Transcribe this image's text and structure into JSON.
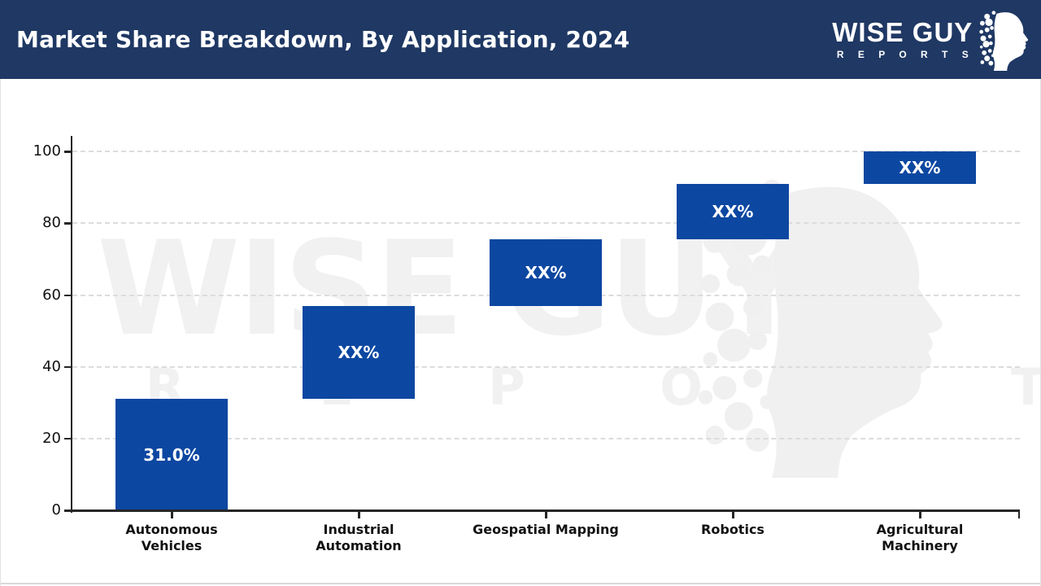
{
  "header": {
    "title": "Market Share Breakdown, By Application, 2024",
    "logo": {
      "brand": "WISE GUY",
      "sub": "REPORTS",
      "sub_display": "R E P O R T S"
    }
  },
  "watermark": {
    "brand": "WISE GUY",
    "sub_display": "R E P O R T S"
  },
  "colors": {
    "header_bg": "#1f3864",
    "bar": "#0c47a1",
    "grid": "#dcdcdc",
    "axis": "#262626",
    "bar_label_text": "#ffffff",
    "watermark": "#f1f1f2"
  },
  "chart_data": {
    "type": "bar",
    "subtype": "waterfall",
    "title": "Market Share Breakdown, By Application, 2024",
    "categories": [
      "Autonomous Vehicles",
      "Industrial Automation",
      "Geospatial Mapping",
      "Robotics",
      "Agricultural Machinery"
    ],
    "category_label_lines": [
      [
        "Autonomous",
        "Vehicles"
      ],
      [
        "Industrial",
        "Automation"
      ],
      [
        "Geospatial Mapping"
      ],
      [
        "Robotics"
      ],
      [
        "Agricultural",
        "Machinery"
      ]
    ],
    "segments": [
      {
        "category": "Autonomous Vehicles",
        "start": 0,
        "end": 31,
        "value_label": "31.0%"
      },
      {
        "category": "Industrial Automation",
        "start": 31,
        "end": 57,
        "value_label": "XX%"
      },
      {
        "category": "Geospatial Mapping",
        "start": 57,
        "end": 75.5,
        "value_label": "XX%"
      },
      {
        "category": "Robotics",
        "start": 75.5,
        "end": 91,
        "value_label": "XX%"
      },
      {
        "category": "Agricultural Machinery",
        "start": 91,
        "end": 100,
        "value_label": "XX%"
      }
    ],
    "ylim": [
      0,
      100
    ],
    "yticks": [
      0,
      20,
      40,
      60,
      80,
      100
    ],
    "grid": "horizontal-dashed",
    "legend": "none",
    "xlabel": "",
    "ylabel": ""
  }
}
